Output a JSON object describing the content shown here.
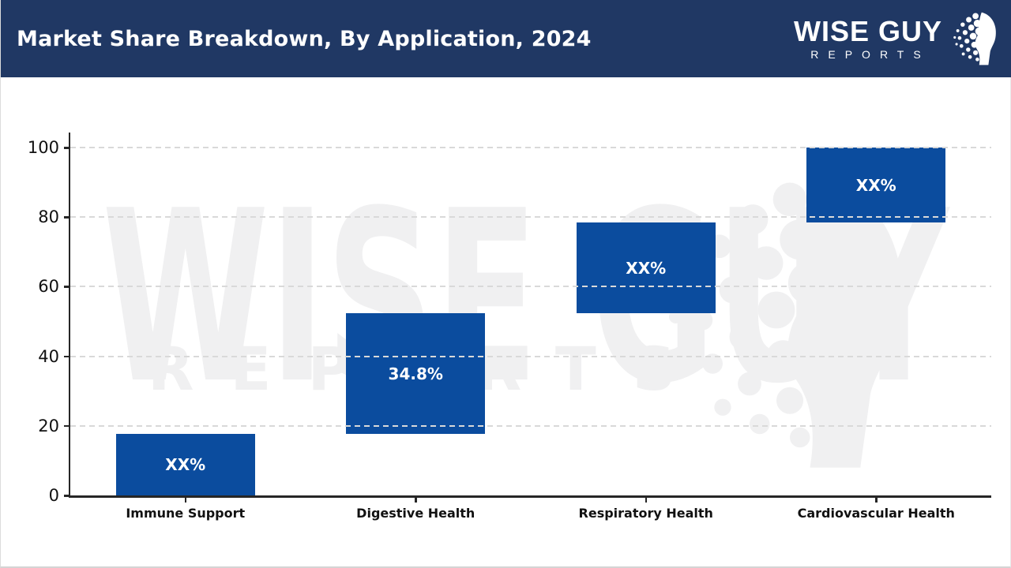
{
  "header": {
    "title": "Market Share Breakdown, By Application, 2024",
    "logo": {
      "line1": "WISE GUY",
      "line2": "REPORTS"
    }
  },
  "watermark": {
    "line1": "WISE GUY",
    "line2": "REPORTS"
  },
  "colors": {
    "header_bg": "#203864",
    "bar": "#0b4c9e",
    "bar_label": "#ffffff",
    "grid": "#d9d9d9",
    "axis": "#262626",
    "watermark": "#f0f0f1"
  },
  "chart_data": {
    "type": "bar",
    "subtype": "floating-waterfall",
    "title": "Market Share Breakdown, By Application, 2024",
    "categories": [
      "Immune Support",
      "Digestive Health",
      "Respiratory Health",
      "Cardiovascular Health"
    ],
    "series": [
      {
        "name": "Market share segment",
        "segments": [
          {
            "start": 0,
            "end": 17.6,
            "label": "XX%"
          },
          {
            "start": 17.6,
            "end": 52.4,
            "label": "34.8%"
          },
          {
            "start": 52.4,
            "end": 78.4,
            "label": "XX%"
          },
          {
            "start": 78.4,
            "end": 100,
            "label": "XX%"
          }
        ]
      }
    ],
    "bar_labels": [
      "XX%",
      "34.8%",
      "XX%",
      "XX%"
    ],
    "yticks": [
      0,
      20,
      40,
      60,
      80,
      100
    ],
    "ylim": [
      0,
      104
    ],
    "xlabel": "",
    "ylabel": "",
    "grid": "horizontal-dashed",
    "legend": "none"
  }
}
